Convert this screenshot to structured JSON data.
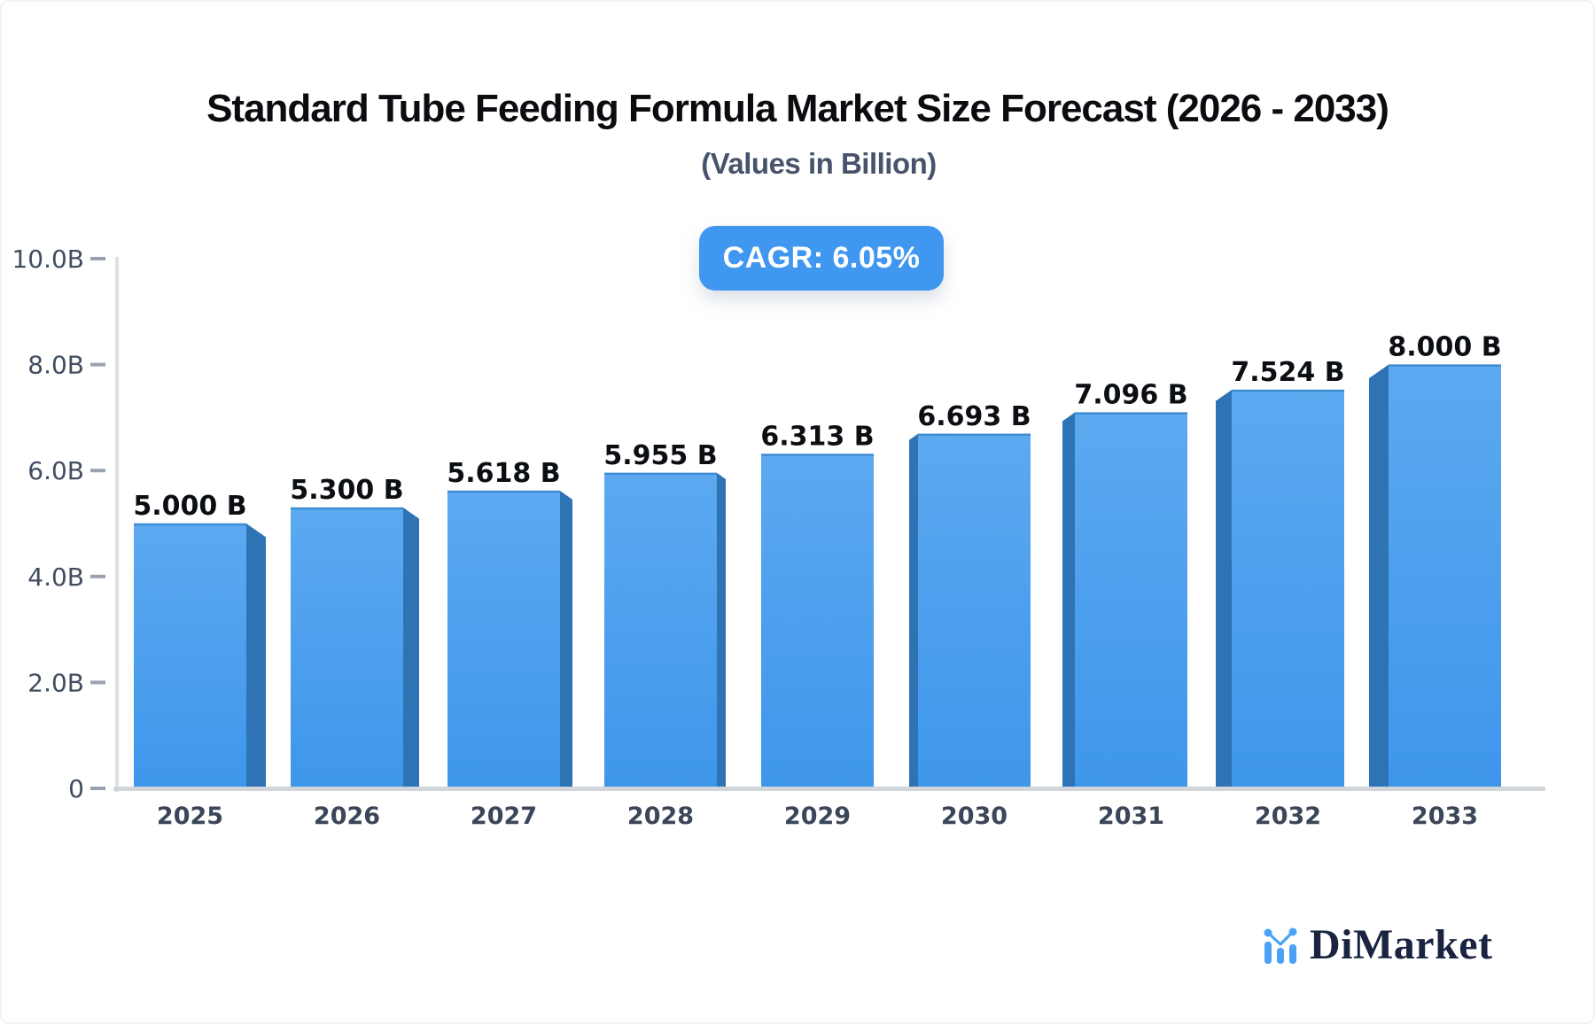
{
  "header": {
    "title": "Standard Tube Feeding Formula Market Size Forecast (2026 - 2033)",
    "subtitle": "(Values in Billion)",
    "cagr_badge": "CAGR: 6.05%"
  },
  "chart_data": {
    "type": "bar",
    "title": "Standard Tube Feeding Formula Market Size Forecast (2026 - 2033)",
    "subtitle": "(Values in Billion)",
    "cagr_percent": "6.05%",
    "categories": [
      "2025",
      "2026",
      "2027",
      "2028",
      "2029",
      "2030",
      "2031",
      "2032",
      "2033"
    ],
    "values": [
      5.0,
      5.3,
      5.618,
      5.955,
      6.313,
      6.693,
      7.096,
      7.524,
      8.0
    ],
    "value_labels": [
      "5.000 B",
      "5.300 B",
      "5.618 B",
      "5.955 B",
      "6.313 B",
      "6.693 B",
      "7.096 B",
      "7.524 B",
      "8.000 B"
    ],
    "unit": "Billion",
    "xlabel": "",
    "ylabel": "",
    "ylim": [
      0,
      10
    ],
    "yticks": {
      "values": [
        10,
        8,
        6,
        4,
        2,
        0
      ],
      "labels": [
        "10.0B",
        "8.0B",
        "6.0B",
        "4.0B",
        "2.0B",
        "0"
      ]
    },
    "grid": false,
    "legend": "none",
    "style": "3d-perspective-columns"
  },
  "colors": {
    "badge_bg": "#4097F0",
    "bar_face_top": "#5CA9F0",
    "bar_face_bottom": "#3E96EB",
    "bar_side": "#2E74B4",
    "bar_top_edge": "#3E8CD2",
    "axis_line": "#DCDFE4",
    "baseline": "#D2D6DB",
    "tick": "#99A2AD",
    "y_label": "#414D60",
    "x_label": "#3B4659",
    "value_label": "#0B0E12",
    "brand_text": "#1A2440",
    "brand_icon": "#4BA2F5"
  },
  "footer": {
    "brand": "DiMarket",
    "brand_icon": "bar-chart-sparkline-logo-icon"
  }
}
